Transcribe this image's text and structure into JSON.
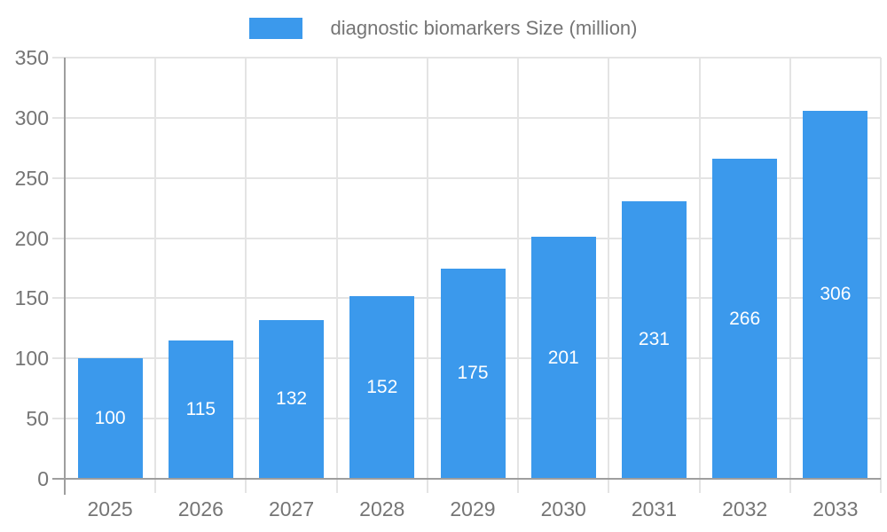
{
  "chart_data": {
    "type": "bar",
    "title": "",
    "legend": [
      "diagnostic biomarkers Size (million)"
    ],
    "legend_position": "top",
    "categories": [
      "2025",
      "2026",
      "2027",
      "2028",
      "2029",
      "2030",
      "2031",
      "2032",
      "2033"
    ],
    "values": [
      100,
      115,
      132,
      152,
      175,
      201,
      231,
      266,
      306
    ],
    "xlabel": "",
    "ylabel": "",
    "ylim": [
      0,
      350
    ],
    "ytick_step": 50,
    "yticks": [
      0,
      50,
      100,
      150,
      200,
      250,
      300,
      350
    ],
    "grid": true,
    "bar_labels_shown": true,
    "colors": {
      "bar": "#3B99EC",
      "bar_value_text": "#FFFFFF",
      "axis_text": "#757575",
      "legend_text": "#757575",
      "gridline": "#E4E4E4",
      "axis_line": "#9E9E9E",
      "background": "#FFFFFF"
    }
  }
}
